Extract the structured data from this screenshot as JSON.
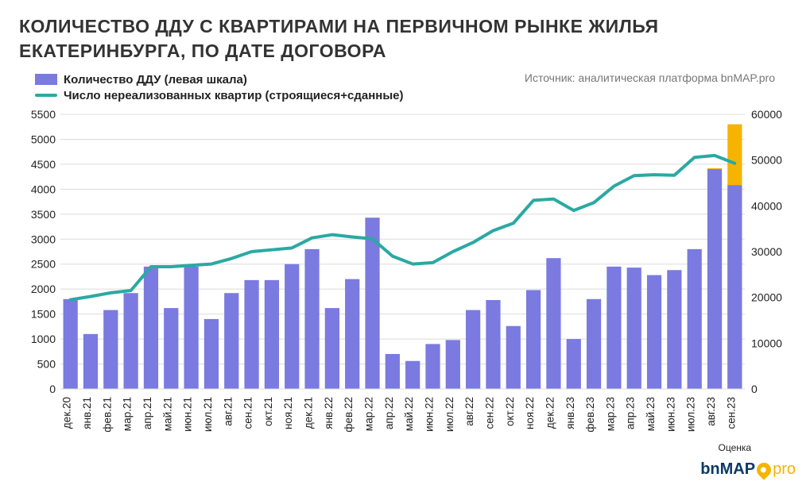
{
  "title": "КОЛИЧЕСТВО ДДУ С КВАРТИРАМИ НА ПЕРВИЧНОМ РЫНКЕ ЖИЛЬЯ ЕКАТЕРИНБУРГА, ПО ДАТЕ ДОГОВОРА",
  "source": "Источник: аналитическая платформа bnMAP.pro",
  "legend": {
    "bars": "Количество ДДУ (левая шкала)",
    "line": "Число нереализованных квартир (строящиеся+сданные)"
  },
  "chart": {
    "type": "bar+line",
    "background_color": "#ffffff",
    "grid_color": "#dcdcdc",
    "bar_color": "#7a7ae0",
    "overlay_color": "#f6b400",
    "line_color": "#2aa9a3",
    "line_width": 4,
    "font_color": "#222222",
    "categories": [
      "дек.20",
      "янв.21",
      "фев.21",
      "мар.21",
      "апр.21",
      "май.21",
      "июн.21",
      "июл.21",
      "авг.21",
      "сен.21",
      "окт.21",
      "ноя.21",
      "дек.21",
      "янв.22",
      "фев.22",
      "мар.22",
      "апр.22",
      "май.22",
      "июн.22",
      "июл.22",
      "авг.22",
      "сен.22",
      "окт.22",
      "ноя.22",
      "дек.22",
      "янв.23",
      "фев.23",
      "мар.23",
      "апр.23",
      "май.23",
      "июн.23",
      "июл.23",
      "авг.23",
      "сен.23"
    ],
    "sublabel_index": 33,
    "sublabel_text": "Оценка",
    "bars": [
      1800,
      1100,
      1580,
      1920,
      2450,
      1620,
      2450,
      1400,
      1920,
      2180,
      2180,
      2500,
      2800,
      1620,
      2200,
      3430,
      700,
      560,
      900,
      980,
      1580,
      1780,
      1260,
      1980,
      2620,
      1000,
      1800,
      2450,
      2430,
      2280,
      2380,
      2800,
      4400,
      4080
    ],
    "bars_overlay": [
      null,
      null,
      null,
      null,
      null,
      null,
      null,
      null,
      null,
      null,
      null,
      null,
      null,
      null,
      null,
      null,
      null,
      null,
      null,
      null,
      null,
      null,
      null,
      null,
      null,
      null,
      null,
      null,
      null,
      null,
      null,
      null,
      4420,
      5300
    ],
    "line_values": [
      19500,
      20200,
      21000,
      21500,
      26700,
      26700,
      27000,
      27300,
      28500,
      30000,
      30400,
      30800,
      33000,
      33700,
      33200,
      32800,
      29000,
      27300,
      27600,
      30000,
      32000,
      34600,
      36200,
      41200,
      41500,
      39000,
      40700,
      44300,
      46600,
      46800,
      46700,
      50600,
      51000,
      49300
    ],
    "y_left": {
      "min": 0,
      "max": 5500,
      "ticks": [
        0,
        500,
        1000,
        1500,
        2000,
        2500,
        3000,
        3500,
        4000,
        4500,
        5000,
        5500
      ]
    },
    "y_right": {
      "min": 0,
      "max": 60000,
      "ticks": [
        0,
        10000,
        20000,
        30000,
        40000,
        50000,
        60000
      ]
    },
    "bar_width_ratio": 0.72,
    "title_fontsize": 23,
    "tick_fontsize": 14,
    "xtick_fontsize": 13.5
  },
  "logo": {
    "prefix": "bnMAP",
    "suffix": "pro"
  }
}
